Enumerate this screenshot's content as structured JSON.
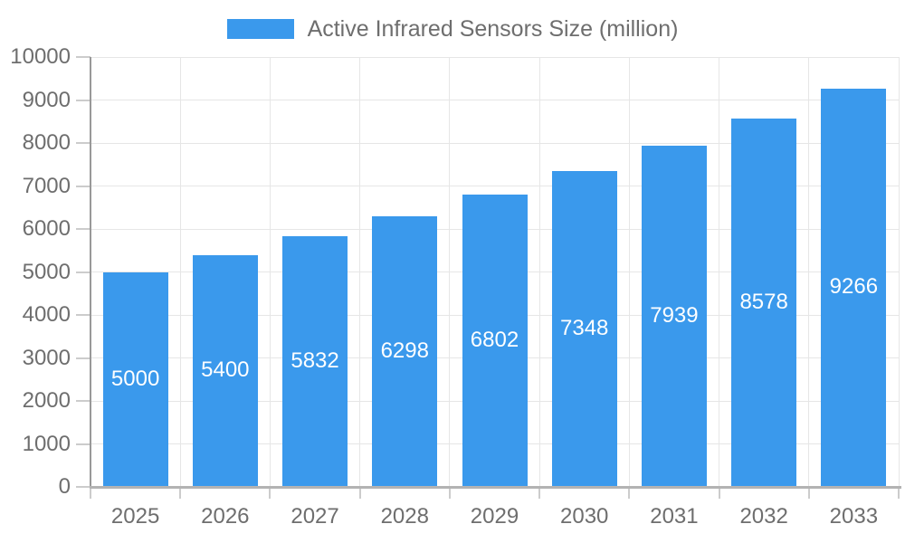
{
  "legend": {
    "label": "Active Infrared Sensors Size (million)"
  },
  "chart_data": {
    "type": "bar",
    "title": "",
    "categories": [
      "2025",
      "2026",
      "2027",
      "2028",
      "2029",
      "2030",
      "2031",
      "2032",
      "2033"
    ],
    "series": [
      {
        "name": "Active Infrared Sensors Size (million)",
        "values": [
          5000,
          5400,
          5832,
          6298,
          6802,
          7348,
          7939,
          8578,
          9266
        ]
      }
    ],
    "value_labels": "inside-center",
    "xlabel": "",
    "ylabel": "",
    "ylim": [
      0,
      10000
    ],
    "yticks": [
      0,
      1000,
      2000,
      3000,
      4000,
      5000,
      6000,
      7000,
      8000,
      9000,
      10000
    ],
    "grid": "horizontal-and-vertical",
    "legend_position": "top-center",
    "colors": {
      "bar": "#3a99ec",
      "bar_label": "#ffffff",
      "axis_label": "#6e6e6e",
      "gridline": "#e6e6e6",
      "tick": "#cccccc",
      "y_axis_line": "#999999",
      "x_axis_line": "#b3b3b3",
      "background": "#ffffff"
    }
  }
}
